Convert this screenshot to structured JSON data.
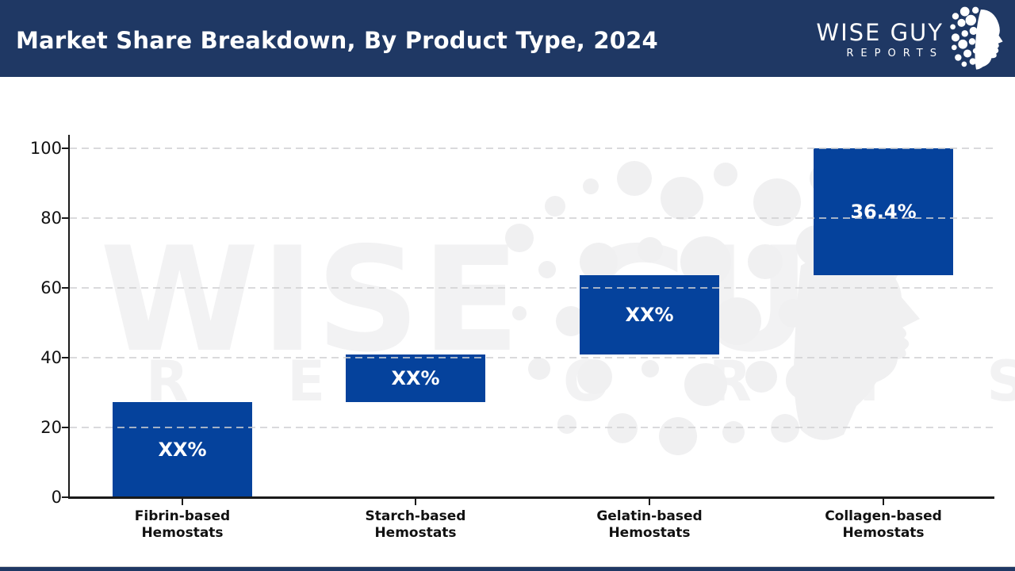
{
  "header": {
    "title": "Market Share Breakdown, By Product Type, 2024",
    "logo": {
      "line1": "WISE GUY",
      "line2": "REPORTS",
      "line2_display": "R E P O R T S"
    }
  },
  "watermark": {
    "line1": "WISE GUY",
    "line2": "REPORTS",
    "line2_display": "R E P O R T S"
  },
  "colors": {
    "header_bg": "#1F3864",
    "bar": "#05429C",
    "grid": "#D3D3D3",
    "axis": "#1A1A1A",
    "watermark": "#F0F0F1",
    "bar_label": "#FFFFFF",
    "title_text": "#FFFFFF"
  },
  "chart_data": {
    "type": "bar",
    "subtype": "waterfall",
    "title": "Market Share Breakdown, By Product Type, 2024",
    "categories": [
      "Fibrin-based Hemostats",
      "Starch-based Hemostats",
      "Gelatin-based Hemostats",
      "Collagen-based Hemostats"
    ],
    "category_lines": [
      [
        "Fibrin-based",
        "Hemostats"
      ],
      [
        "Starch-based",
        "Hemostats"
      ],
      [
        "Gelatin-based",
        "Hemostats"
      ],
      [
        "Collagen-based",
        "Hemostats"
      ]
    ],
    "values": [
      27.3,
      13.6,
      22.7,
      36.4
    ],
    "starts": [
      0,
      27.3,
      40.9,
      63.6
    ],
    "ends": [
      27.3,
      40.9,
      63.6,
      100
    ],
    "bar_labels": [
      "XX%",
      "XX%",
      "XX%",
      "36.4%"
    ],
    "unit": "%",
    "ylim": [
      0,
      100
    ],
    "yticks": [
      0,
      20,
      40,
      60,
      80,
      100
    ],
    "xlabel": "",
    "ylabel": "",
    "grid": "horizontal-dashed",
    "legend": "none"
  }
}
